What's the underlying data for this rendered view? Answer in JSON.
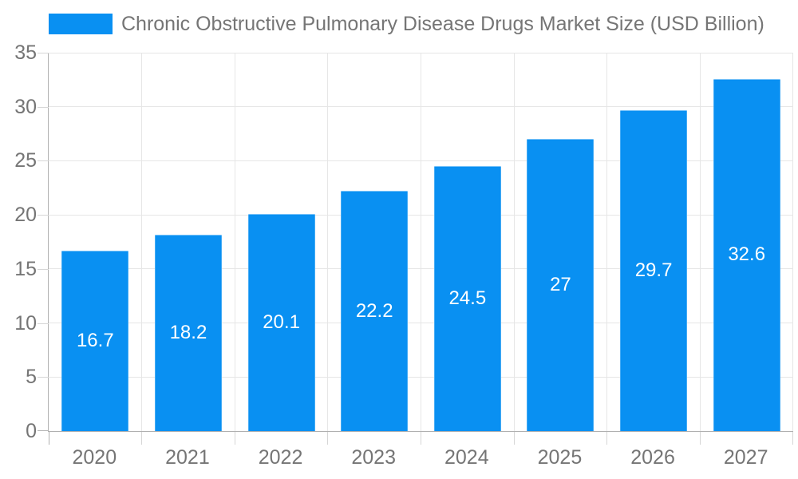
{
  "chart_data": {
    "type": "bar",
    "title": "Chronic Obstructive Pulmonary Disease Drugs Market Size (USD Billion)",
    "series_name": "Chronic Obstructive Pulmonary Disease Drugs Market Size (USD Billion)",
    "categories": [
      "2020",
      "2021",
      "2022",
      "2023",
      "2024",
      "2025",
      "2026",
      "2027"
    ],
    "values": [
      16.7,
      18.2,
      20.1,
      22.2,
      24.5,
      27,
      29.7,
      32.6
    ],
    "value_labels": [
      "16.7",
      "18.2",
      "20.1",
      "22.2",
      "24.5",
      "27",
      "29.7",
      "32.6"
    ],
    "xlabel": "",
    "ylabel": "",
    "ylim": [
      0,
      35
    ],
    "yticks": [
      0,
      5,
      10,
      15,
      20,
      25,
      30,
      35
    ],
    "grid": true,
    "legend_position": "top",
    "colors": {
      "bar": "#0990F2",
      "bar_label": "#FFFFFF",
      "axis_text": "#757575",
      "grid_line": "#E6E6E6",
      "tick_line": "#D6D6D6",
      "axis_line": "#B0B0B0",
      "background": "#FFFFFF"
    }
  }
}
